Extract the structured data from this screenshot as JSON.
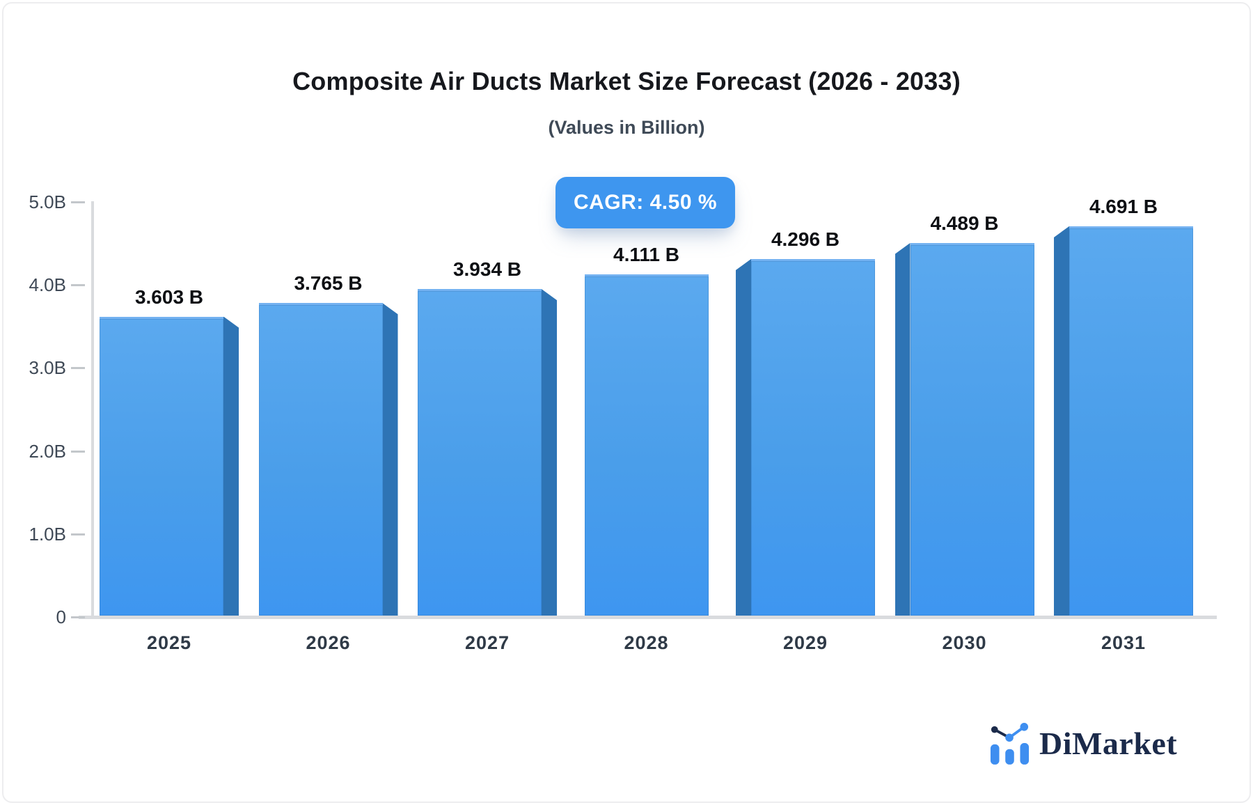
{
  "header": {
    "title": "Composite Air Ducts Market Size Forecast (2026 - 2033)",
    "subtitle": "(Values in Billion)"
  },
  "badge": {
    "label": "CAGR: 4.50 %"
  },
  "chart_data": {
    "type": "bar",
    "title": "Composite Air Ducts Market Size Forecast (2026 - 2033)",
    "subtitle": "(Values in Billion)",
    "categories": [
      "2025",
      "2026",
      "2027",
      "2028",
      "2029",
      "2030",
      "2031"
    ],
    "values": [
      3.603,
      3.765,
      3.934,
      4.111,
      4.296,
      4.489,
      4.691
    ],
    "bar_labels": [
      "3.603 B",
      "3.765 B",
      "3.934 B",
      "4.111 B",
      "4.296 B",
      "4.489 B",
      "4.691 B"
    ],
    "xlabel": "",
    "ylabel": "",
    "ylim": [
      0,
      5
    ],
    "yticks": [
      {
        "value": 5,
        "label": "5.0B"
      },
      {
        "value": 4,
        "label": "4.0B"
      },
      {
        "value": 3,
        "label": "3.0B"
      },
      {
        "value": 2,
        "label": "2.0B"
      },
      {
        "value": 1,
        "label": "1.0B"
      },
      {
        "value": 0,
        "label": "0"
      }
    ],
    "grid": false,
    "legend": "none",
    "cagr": "4.50 %"
  },
  "colors": {
    "badge_bg": "#3e96ef",
    "bar_top": "#5ba9ef",
    "bar_bottom": "#3e96f0",
    "bar_side": "#2e74b5",
    "axis": "#d9dbde",
    "logo_navy": "#1b2a4a",
    "logo_blue": "#3e8ef0"
  },
  "logo": {
    "text": "DiMarket",
    "icon": "bar-chart-logo-icon"
  }
}
